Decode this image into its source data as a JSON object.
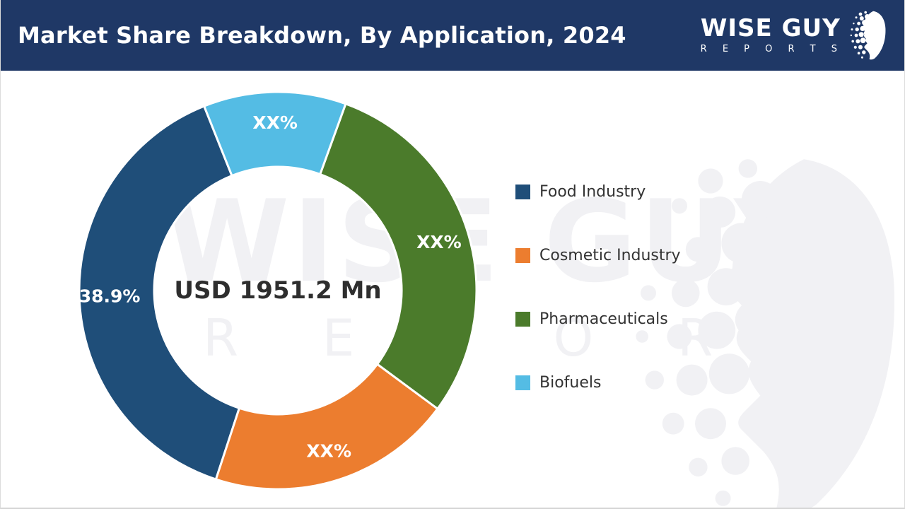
{
  "header": {
    "title": "Market Share Breakdown, By Application, 2024",
    "logo": {
      "line1": "WISE GUY",
      "line2": "R E P O R T S"
    }
  },
  "watermark": {
    "line1": "WISE GUY",
    "line2": "R E P O R T S"
  },
  "chart_data": {
    "type": "pie",
    "donut": true,
    "title": "Market Share Breakdown, By Application, 2024",
    "center_label": "USD 1951.2 Mn",
    "legend_position": "right",
    "start_angle_deg": 111.8,
    "direction": "counterclockwise",
    "segments": [
      {
        "name": "Food Industry",
        "value_pct": 38.9,
        "label": "38.9%",
        "color": "#1F4E79"
      },
      {
        "name": "Cosmetic Industry",
        "value_pct": 19.9,
        "label": "XX%",
        "color": "#EC7D2F"
      },
      {
        "name": "Pharmaceuticals",
        "value_pct": 29.6,
        "label": "XX%",
        "color": "#4B7B2B"
      },
      {
        "name": "Biofuels",
        "value_pct": 11.6,
        "label": "XX%",
        "color": "#54BCE4"
      }
    ]
  },
  "colors": {
    "header_bg": "#1F3866",
    "segment_label_text": "#FFFFFF",
    "center_text": "#2E2E2E",
    "legend_text": "#333333",
    "watermark": "#F1F1F4",
    "bottom_border": "#D5D5D5"
  }
}
